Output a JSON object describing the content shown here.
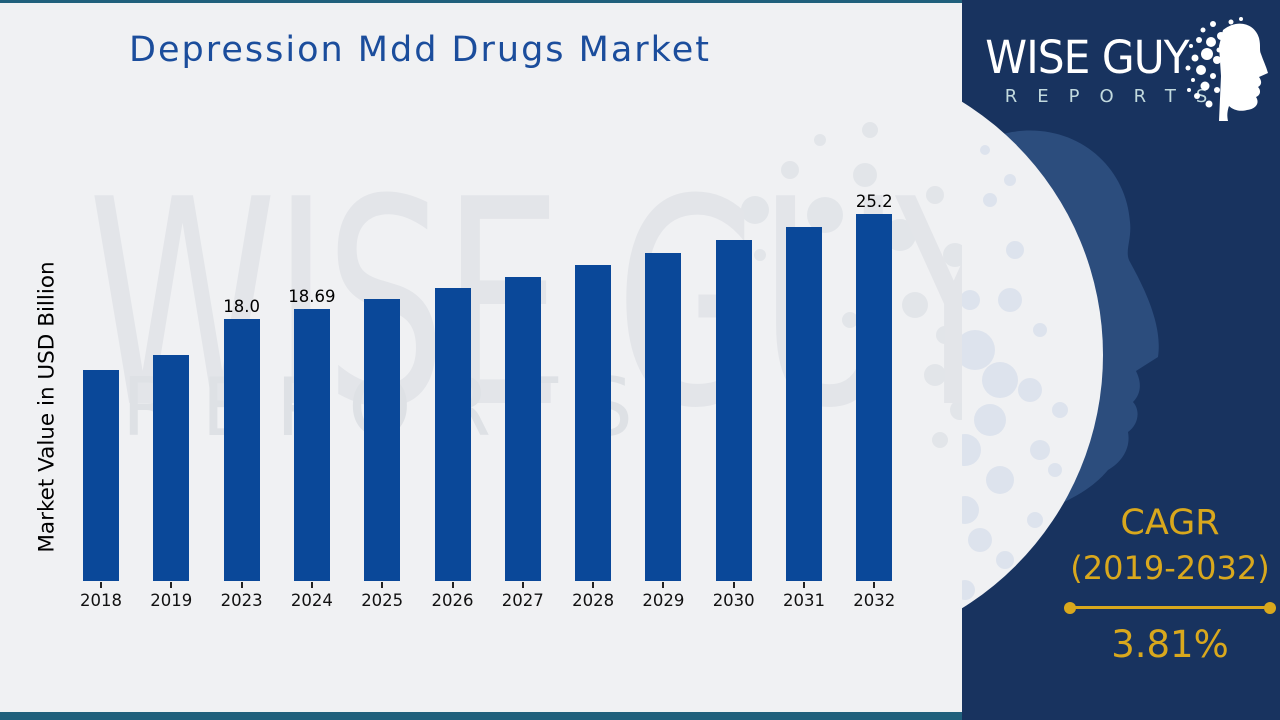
{
  "page": {
    "background_color": "#f0f1f3",
    "top_strip_color": "#20607c",
    "bottom_strip_color": "#20607c",
    "title_color": "#1b4d9c"
  },
  "logo": {
    "name_line": "WISE GUY",
    "sub_line": "REPORTS",
    "face_icon": "dotted-head-profile-icon"
  },
  "side_panel": {
    "panel_color": "#18335f",
    "face_silhouette_color": "#2c4d7d",
    "gold_color": "#d9a81d",
    "cagr_label": "CAGR",
    "cagr_range": "(2019-2032)",
    "cagr_value": "3.81%"
  },
  "watermark": {
    "big_text": "WISE GUY",
    "reports_text": "REPORTS"
  },
  "chart_data": {
    "type": "bar",
    "title": "Depression Mdd Drugs Market",
    "xlabel": "",
    "ylabel": "Market Value in USD Billion",
    "categories": [
      "2018",
      "2019",
      "2023",
      "2024",
      "2025",
      "2026",
      "2027",
      "2028",
      "2029",
      "2030",
      "2031",
      "2032"
    ],
    "values": [
      14.5,
      15.5,
      18.0,
      18.69,
      19.4,
      20.1,
      20.9,
      21.7,
      22.5,
      23.4,
      24.3,
      25.2
    ],
    "bar_labels": [
      "",
      "",
      "18.0",
      "18.69",
      "",
      "",
      "",
      "",
      "",
      "",
      "",
      "25.2"
    ],
    "bar_color": "#0a4899",
    "ylim": [
      0,
      27
    ],
    "grid": false,
    "legend": null,
    "y_axis_ticks_visible": false
  }
}
